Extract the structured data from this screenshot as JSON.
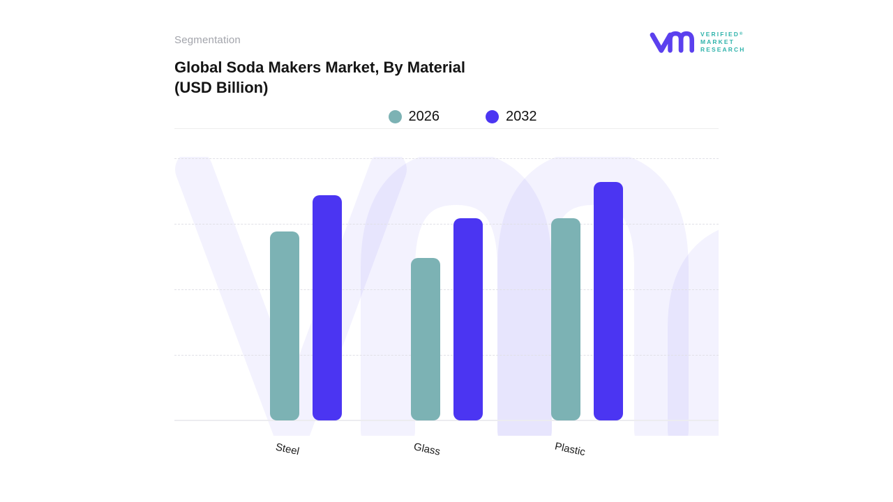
{
  "header": {
    "eyebrow": "Segmentation",
    "title_line1": "Global Soda Makers Market, By Material",
    "title_line2": "(USD Billion)"
  },
  "logo": {
    "wordmark_line1": "VERIFIED",
    "wordmark_line2": "MARKET",
    "wordmark_line3": "RESEARCH",
    "registered_mark": "®",
    "glyph_color": "#5b40ee",
    "wordmark_color": "#2fb3ab"
  },
  "legend": {
    "items": [
      {
        "label": "2026",
        "color": "#7cb2b4"
      },
      {
        "label": "2032",
        "color": "#4b35f2"
      }
    ]
  },
  "chart_data": {
    "type": "bar",
    "title": "Global Soda Makers Market, By Material (USD Billion)",
    "categories": [
      "Steel",
      "Glass",
      "Plastic"
    ],
    "series": [
      {
        "name": "2026",
        "color": "#7cb2b4",
        "values": [
          72,
          62,
          77
        ]
      },
      {
        "name": "2032",
        "color": "#4b35f2",
        "values": [
          86,
          77,
          91
        ]
      }
    ],
    "ylim": [
      0,
      100
    ],
    "y_axis_labels": "none (relative scale, values in USD Billion)",
    "grid": "horizontal-dashed",
    "legend_position": "top-center",
    "x_tick_rotation_deg": 12
  }
}
